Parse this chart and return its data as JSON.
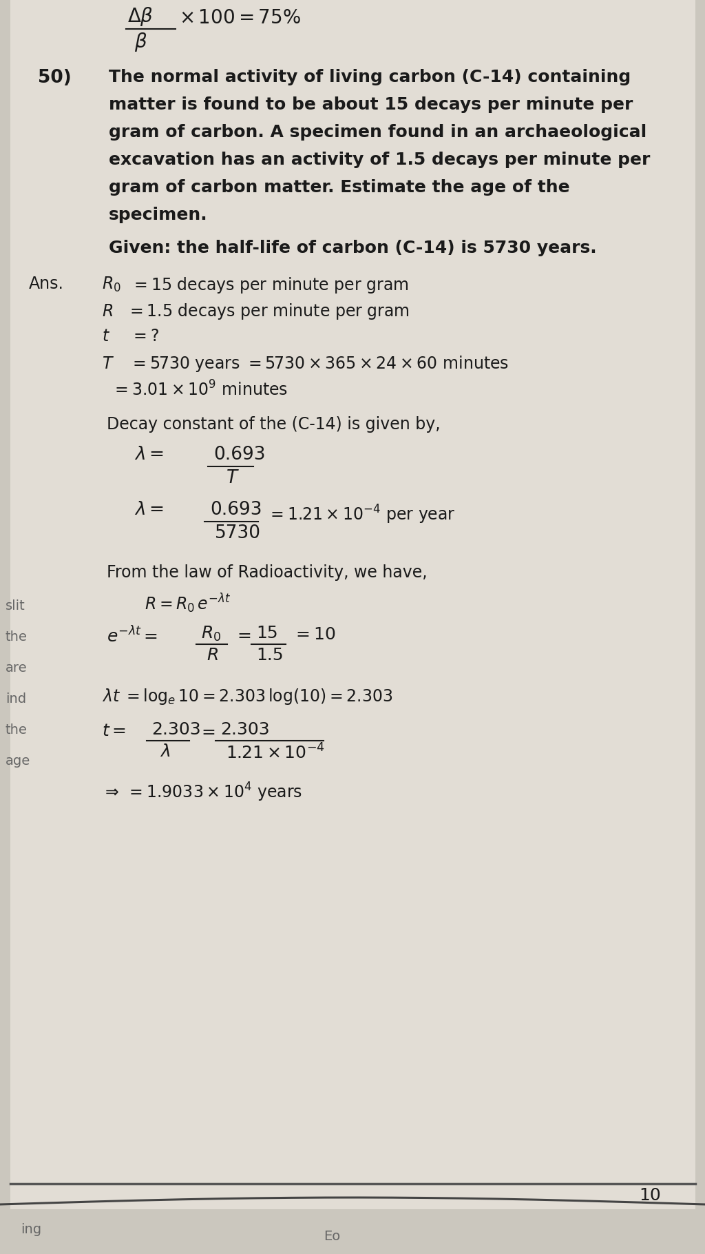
{
  "bg_color": "#cbc7be",
  "page_bg": "#e2ddd5",
  "text_color": "#1a1a1a",
  "page_number": "10",
  "left_margin_words": [
    "slit",
    "the",
    "are",
    "ind",
    "the",
    "age"
  ],
  "bottom_left": "ing",
  "bottom_center": "Eo"
}
